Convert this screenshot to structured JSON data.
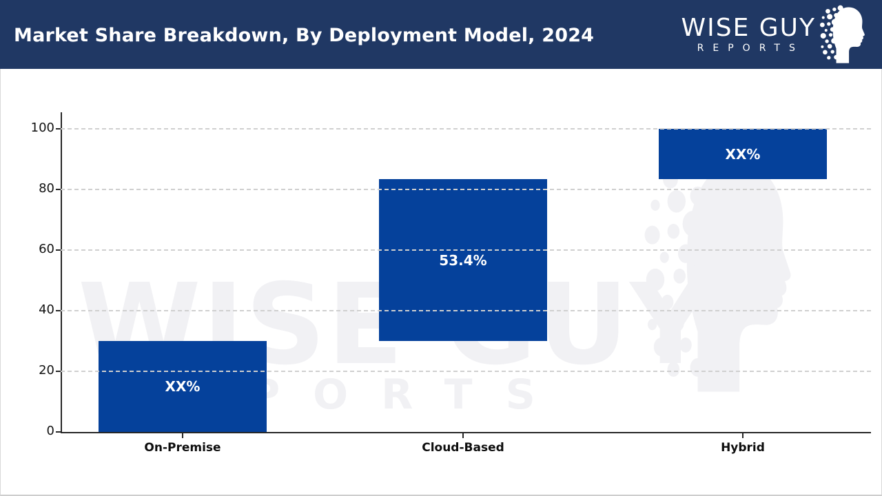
{
  "header": {
    "title": "Market Share Breakdown, By Deployment Model, 2024",
    "bg_color": "#203864",
    "logo": {
      "wordmark": "WISE GUY",
      "subtext": "REPORTS"
    }
  },
  "watermark": {
    "wordmark": "WISE GUY",
    "subtext": "REPORTS"
  },
  "chart_data": {
    "type": "bar",
    "variant": "floating-segment-bars",
    "title": "Market Share Breakdown, By Deployment Model, 2024",
    "categories": [
      "On-Premise",
      "Cloud-Based",
      "Hybrid"
    ],
    "bars": [
      {
        "category": "On-Premise",
        "start": 0,
        "end": 30,
        "label": "XX%"
      },
      {
        "category": "Cloud-Based",
        "start": 30,
        "end": 83.4,
        "label": "53.4%"
      },
      {
        "category": "Hybrid",
        "start": 83.4,
        "end": 100,
        "label": "XX%"
      }
    ],
    "yticks": [
      0,
      20,
      40,
      60,
      80,
      100
    ],
    "ylim": [
      0,
      105
    ],
    "xlabel": "",
    "ylabel": "",
    "grid": "dashed-horizontal-overlay",
    "legend": "none",
    "bar_color": "#05419b",
    "bar_label_color": "#ffffff",
    "axis_color": "#262626",
    "grid_color": "#cfcfcf",
    "tick_label_color": "#111111"
  }
}
